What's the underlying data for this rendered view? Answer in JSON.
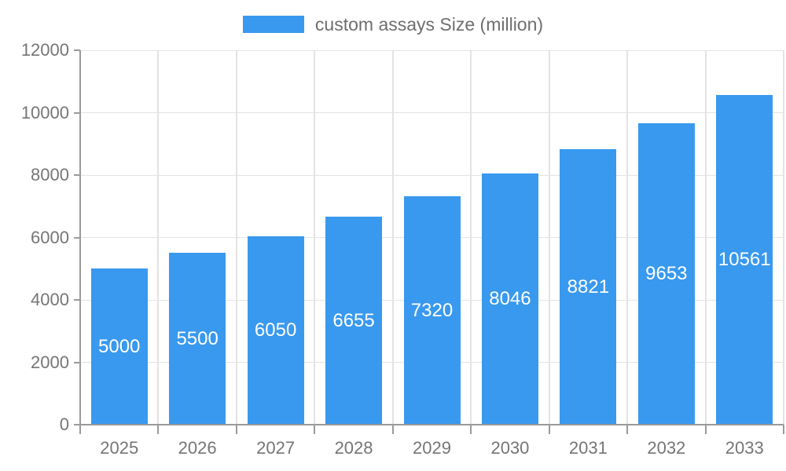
{
  "page": {
    "background": "#ffffff"
  },
  "legend": {
    "label": "custom assays Size (million)"
  },
  "chart_data": {
    "type": "bar",
    "title": "custom assays Size (million)",
    "categories": [
      "2025",
      "2026",
      "2027",
      "2028",
      "2029",
      "2030",
      "2031",
      "2032",
      "2033"
    ],
    "series": [
      {
        "name": "custom assays Size (million)",
        "values": [
          5000,
          5500,
          6050,
          6655,
          7320,
          8046,
          8821,
          9653,
          10561
        ]
      }
    ],
    "value_labels": [
      "5000",
      "5500",
      "6050",
      "6655",
      "7320",
      "8046",
      "8821",
      "9653",
      "10561"
    ],
    "xlabel": "",
    "ylabel": "",
    "ylim": [
      0,
      12000
    ],
    "yticks": [
      0,
      2000,
      4000,
      6000,
      8000,
      10000,
      12000
    ],
    "grid": true,
    "legend_position": "top-center",
    "value_label_position": "center-inside",
    "colors": {
      "bar": "#3999ee",
      "value_label": "#ffffff",
      "axis_text": "#757575",
      "legend_text": "#6e6e6e",
      "gridline": "#e3e3e3",
      "axis_line": "#9a9a9a"
    }
  }
}
